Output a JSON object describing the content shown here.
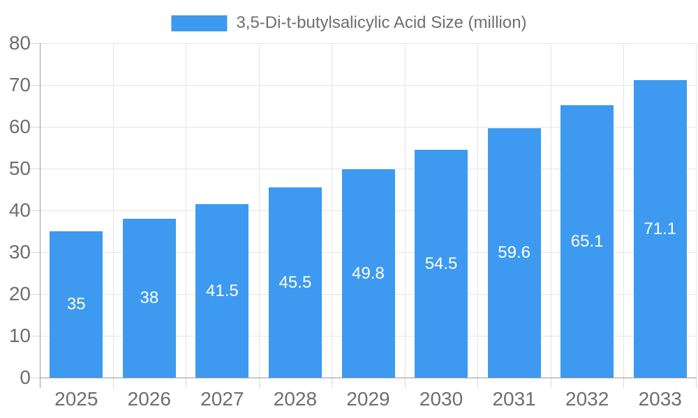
{
  "legend": {
    "label": "3,5-Di-t-butylsalicylic Acid Size (million)"
  },
  "chart_data": {
    "type": "bar",
    "title": "3,5-Di-t-butylsalicylic Acid Size (million)",
    "categories": [
      "2025",
      "2026",
      "2027",
      "2028",
      "2029",
      "2030",
      "2031",
      "2032",
      "2033"
    ],
    "values": [
      35,
      38,
      41.5,
      45.5,
      49.8,
      54.5,
      59.6,
      65.1,
      71.1
    ],
    "xlabel": "",
    "ylabel": "",
    "ylim": [
      0,
      80
    ],
    "ytick_interval": 10,
    "grid": true,
    "legend_position": "top-center",
    "bar_color": "#3d9af0",
    "value_label_color": "#ffffff",
    "axis_label_color": "#6e6e6e",
    "gridline_color": "#e5e5e5",
    "axis_line_color": "#9a9a9a"
  }
}
